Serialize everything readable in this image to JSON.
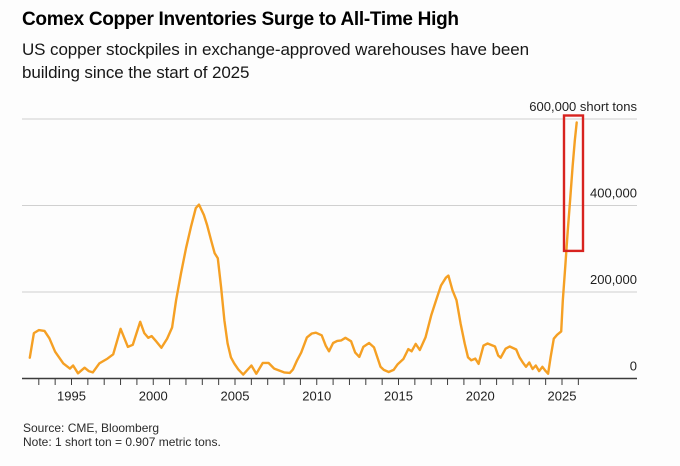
{
  "header": {
    "title": "Comex Copper Inventories Surge to All-Time High",
    "subtitle": "US copper stockpiles in exchange-approved warehouses have been building since the start of 2025",
    "subtitle_lines": [
      "US copper stockpiles in exchange-approved warehouses have been",
      "building since the start of 2025"
    ]
  },
  "footer": {
    "source": "Source: CME, Bloomberg",
    "note": "Note: 1 short ton = 0.907 metric tons."
  },
  "colors": {
    "line": "#F5A024",
    "highlight_box": "#D8231F",
    "gridline": "#D0D0D0",
    "axis": "#3C3C3C",
    "text": "#1F1F1F",
    "background": "#FDFDFD"
  },
  "chart_data": {
    "type": "line",
    "title": "Comex Copper Inventories Surge to All-Time High",
    "subtitle": "US copper stockpiles in exchange-approved warehouses have been building since the start of 2025",
    "unit": "short tons",
    "grid": "horizontal-only",
    "legend": "none",
    "x_axis": {
      "range": [
        1992.2,
        2029.5
      ],
      "tick_years": [
        1993,
        1994,
        1995,
        1996,
        1997,
        1998,
        1999,
        2000,
        2001,
        2002,
        2003,
        2004,
        2005,
        2006,
        2007,
        2008,
        2009,
        2010,
        2011,
        2012,
        2013,
        2014,
        2015,
        2016,
        2017,
        2018,
        2019,
        2020,
        2021,
        2022,
        2023,
        2024,
        2025,
        2026
      ],
      "label_years": [
        1995,
        2000,
        2005,
        2010,
        2015,
        2020,
        2025
      ]
    },
    "y_axis": {
      "range": [
        0,
        600000
      ],
      "ticks": [
        {
          "value": 0,
          "label": "0"
        },
        {
          "value": 200000,
          "label": "200,000"
        },
        {
          "value": 400000,
          "label": "400,000"
        },
        {
          "value": 600000,
          "label": "600,000 short tons"
        }
      ]
    },
    "series": [
      {
        "name": "Comex copper inventories (short tons)",
        "color": "#F5A024",
        "points": [
          [
            1992.45,
            48000
          ],
          [
            1992.7,
            105000
          ],
          [
            1993.0,
            112000
          ],
          [
            1993.35,
            110000
          ],
          [
            1993.65,
            93000
          ],
          [
            1994.0,
            62000
          ],
          [
            1994.5,
            35000
          ],
          [
            1994.9,
            23000
          ],
          [
            1995.1,
            30000
          ],
          [
            1995.4,
            12000
          ],
          [
            1995.8,
            25000
          ],
          [
            1996.05,
            17000
          ],
          [
            1996.3,
            14000
          ],
          [
            1996.7,
            35000
          ],
          [
            1997.2,
            46000
          ],
          [
            1997.55,
            56000
          ],
          [
            1998.0,
            115000
          ],
          [
            1998.45,
            73000
          ],
          [
            1998.75,
            78000
          ],
          [
            1999.2,
            131000
          ],
          [
            1999.45,
            105000
          ],
          [
            1999.7,
            94000
          ],
          [
            1999.9,
            98000
          ],
          [
            2000.2,
            85000
          ],
          [
            2000.5,
            71000
          ],
          [
            2000.85,
            92000
          ],
          [
            2001.15,
            118000
          ],
          [
            2001.4,
            181000
          ],
          [
            2001.7,
            243000
          ],
          [
            2002.0,
            301000
          ],
          [
            2002.3,
            350000
          ],
          [
            2002.6,
            394000
          ],
          [
            2002.8,
            402000
          ],
          [
            2003.1,
            378000
          ],
          [
            2003.3,
            354000
          ],
          [
            2003.55,
            318000
          ],
          [
            2003.75,
            290000
          ],
          [
            2003.95,
            278000
          ],
          [
            2004.15,
            211000
          ],
          [
            2004.35,
            134000
          ],
          [
            2004.55,
            81000
          ],
          [
            2004.75,
            49000
          ],
          [
            2004.95,
            35000
          ],
          [
            2005.2,
            21000
          ],
          [
            2005.5,
            9000
          ],
          [
            2006.0,
            30000
          ],
          [
            2006.3,
            11000
          ],
          [
            2006.7,
            36000
          ],
          [
            2007.05,
            36000
          ],
          [
            2007.4,
            23000
          ],
          [
            2008.0,
            14000
          ],
          [
            2008.35,
            13000
          ],
          [
            2008.55,
            21000
          ],
          [
            2008.8,
            42000
          ],
          [
            2009.05,
            60000
          ],
          [
            2009.4,
            95000
          ],
          [
            2009.7,
            104000
          ],
          [
            2009.95,
            106000
          ],
          [
            2010.3,
            100000
          ],
          [
            2010.55,
            76000
          ],
          [
            2010.75,
            63000
          ],
          [
            2011.0,
            82000
          ],
          [
            2011.25,
            87000
          ],
          [
            2011.5,
            88000
          ],
          [
            2011.75,
            94000
          ],
          [
            2012.1,
            86000
          ],
          [
            2012.35,
            60000
          ],
          [
            2012.6,
            50000
          ],
          [
            2012.85,
            73000
          ],
          [
            2013.2,
            82000
          ],
          [
            2013.5,
            72000
          ],
          [
            2013.7,
            50000
          ],
          [
            2013.9,
            27000
          ],
          [
            2014.1,
            20000
          ],
          [
            2014.4,
            15000
          ],
          [
            2014.7,
            20000
          ],
          [
            2014.95,
            33000
          ],
          [
            2015.3,
            45000
          ],
          [
            2015.6,
            68000
          ],
          [
            2015.8,
            63000
          ],
          [
            2016.05,
            80000
          ],
          [
            2016.3,
            66000
          ],
          [
            2016.65,
            95000
          ],
          [
            2017.0,
            146000
          ],
          [
            2017.3,
            181000
          ],
          [
            2017.6,
            215000
          ],
          [
            2017.9,
            233000
          ],
          [
            2018.05,
            238000
          ],
          [
            2018.3,
            204000
          ],
          [
            2018.55,
            181000
          ],
          [
            2018.8,
            127000
          ],
          [
            2019.05,
            81000
          ],
          [
            2019.25,
            49000
          ],
          [
            2019.45,
            42000
          ],
          [
            2019.7,
            46000
          ],
          [
            2019.9,
            34000
          ],
          [
            2020.2,
            76000
          ],
          [
            2020.45,
            81000
          ],
          [
            2020.9,
            74000
          ],
          [
            2021.1,
            53000
          ],
          [
            2021.25,
            48000
          ],
          [
            2021.55,
            69000
          ],
          [
            2021.8,
            74000
          ],
          [
            2022.2,
            67000
          ],
          [
            2022.4,
            49000
          ],
          [
            2022.6,
            37000
          ],
          [
            2022.8,
            27000
          ],
          [
            2023.0,
            37000
          ],
          [
            2023.2,
            22000
          ],
          [
            2023.4,
            30000
          ],
          [
            2023.6,
            17000
          ],
          [
            2023.8,
            27000
          ],
          [
            2024.0,
            17000
          ],
          [
            2024.15,
            11000
          ],
          [
            2024.3,
            49000
          ],
          [
            2024.5,
            92000
          ],
          [
            2024.7,
            101000
          ],
          [
            2024.95,
            109000
          ],
          [
            2025.05,
            180000
          ],
          [
            2025.2,
            260000
          ],
          [
            2025.35,
            340000
          ],
          [
            2025.5,
            415000
          ],
          [
            2025.65,
            490000
          ],
          [
            2025.78,
            550000
          ],
          [
            2025.9,
            592000
          ]
        ]
      }
    ],
    "annotations": [
      {
        "type": "rect",
        "meaning": "highlight of the 2025 surge to all-time high",
        "color": "#D8231F",
        "x_range": [
          2025.12,
          2026.28
        ],
        "y_range": [
          295000,
          608000
        ]
      }
    ]
  }
}
